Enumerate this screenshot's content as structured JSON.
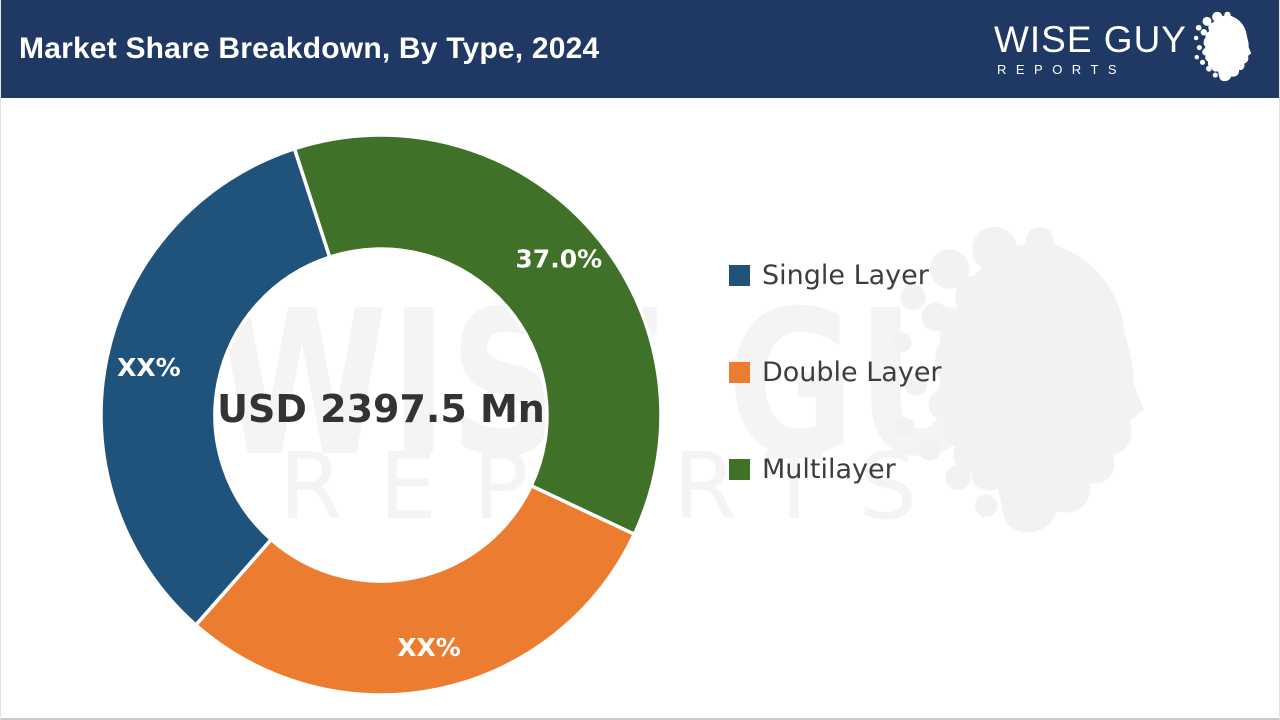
{
  "header": {
    "title": "Market Share Breakdown, By Type, 2024",
    "background": "#1f3864",
    "logo": {
      "wordmark": "WISE GUY",
      "subtitle": "REPORTS"
    }
  },
  "watermark": {
    "wordmark": "WISE GUY",
    "subtitle": "REPORTS"
  },
  "chart_data": {
    "type": "pie",
    "subtype": "donut",
    "title": "Market Share Breakdown, By Type, 2024",
    "center_label": "USD 2397.5 Mn",
    "units": "USD Mn",
    "start_angle_deg": 108,
    "direction": "counterclockwise",
    "legend_position": "right",
    "slices": [
      {
        "label": "Single Layer",
        "pct": 33.5,
        "display": "XX%",
        "color": "#1f537c"
      },
      {
        "label": "Double Layer",
        "pct": 29.5,
        "display": "XX%",
        "color": "#ec7c30"
      },
      {
        "label": "Multilayer",
        "pct": 37.0,
        "display": "37.0%",
        "color": "#3f7128"
      }
    ]
  }
}
